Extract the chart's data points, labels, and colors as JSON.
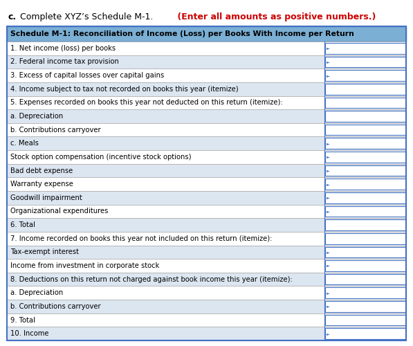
{
  "title_c": "c.",
  "title_text": " Complete XYZ’s Schedule M-1.",
  "title_red": " (Enter all amounts as positive numbers.)",
  "header_text": "Schedule M-1: Reconciliation of Income (Loss) per Books With Income per Return",
  "header_bg": "#7BAFD4",
  "header_text_color": "#000000",
  "border_color": "#4472c4",
  "rows": [
    {
      "label": "1. Net income (loss) per books",
      "has_arrow": true,
      "bg": "white"
    },
    {
      "label": "2. Federal income tax provision",
      "has_arrow": true,
      "bg": "alt"
    },
    {
      "label": "3. Excess of capital losses over capital gains",
      "has_arrow": true,
      "bg": "white"
    },
    {
      "label": "4. Income subject to tax not recorded on books this year (itemize)",
      "has_arrow": false,
      "bg": "alt"
    },
    {
      "label": "5. Expenses recorded on books this year not deducted on this return (itemize):",
      "has_arrow": false,
      "bg": "white"
    },
    {
      "label": "a. Depreciation",
      "has_arrow": false,
      "bg": "alt"
    },
    {
      "label": "b. Contributions carryover",
      "has_arrow": false,
      "bg": "white"
    },
    {
      "label": "c. Meals",
      "has_arrow": true,
      "bg": "alt"
    },
    {
      "label": "Stock option compensation (incentive stock options)",
      "has_arrow": true,
      "bg": "white"
    },
    {
      "label": "Bad debt expense",
      "has_arrow": true,
      "bg": "alt"
    },
    {
      "label": "Warranty expense",
      "has_arrow": true,
      "bg": "white"
    },
    {
      "label": "Goodwill impairment",
      "has_arrow": true,
      "bg": "alt"
    },
    {
      "label": "Organizational expenditures",
      "has_arrow": true,
      "bg": "white"
    },
    {
      "label": "6. Total",
      "has_arrow": false,
      "bg": "alt"
    },
    {
      "label": "7. Income recorded on books this year not included on this return (itemize):",
      "has_arrow": false,
      "bg": "white"
    },
    {
      "label": "Tax-exempt interest",
      "has_arrow": true,
      "bg": "alt"
    },
    {
      "label": "Income from investment in corporate stock",
      "has_arrow": true,
      "bg": "white"
    },
    {
      "label": "8. Deductions on this return not charged against book income this year (itemize):",
      "has_arrow": false,
      "bg": "alt"
    },
    {
      "label": "a. Depreciation",
      "has_arrow": true,
      "bg": "white"
    },
    {
      "label": "b. Contributions carryover",
      "has_arrow": true,
      "bg": "alt"
    },
    {
      "label": "9. Total",
      "has_arrow": false,
      "bg": "white"
    },
    {
      "label": "10. Income",
      "has_arrow": true,
      "bg": "alt"
    }
  ],
  "fig_width": 5.97,
  "fig_height": 5.0,
  "dpi": 100,
  "bg_alt": "#dce6f1",
  "bg_white": "#ffffff"
}
